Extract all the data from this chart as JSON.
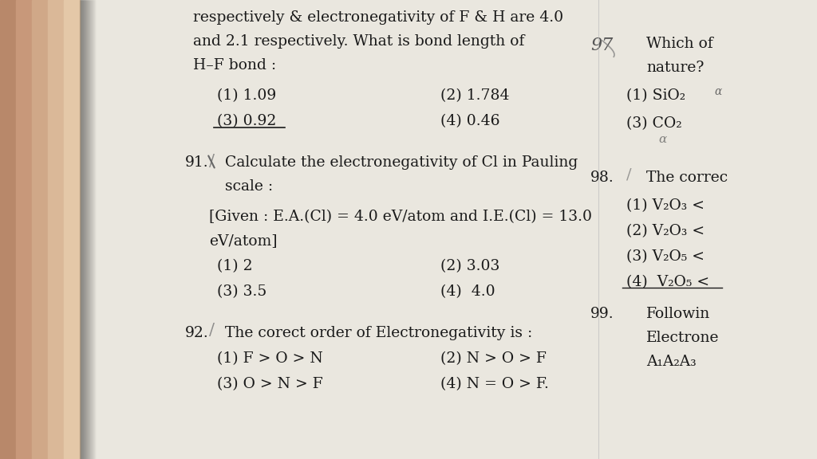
{
  "page_bg": "#d8d4cc",
  "book_page_bg": "#e8e4dc",
  "spine_color": "#c8a882",
  "text_color": "#1a1a1a",
  "font_family": "DejaVu Serif",
  "top_text_lines": [
    "respectively & electronegativity of F & H are 4.0",
    "and 2.1 respectively. What is bond length of",
    "H–F bond :"
  ],
  "q90_opts_row1": [
    "(1) 1.09",
    "(2) 1.784"
  ],
  "q90_opts_row2": [
    "(3) 0.92",
    "(4) 0.46"
  ],
  "q91_number": "91.",
  "q91_lines": [
    "Calculate the electronegativity of Cl in Pauling",
    "scale :"
  ],
  "q91_given1": "[Given : E.A.(Cl) = 4.0 eV/atom and I.E.(Cl) = 13.0",
  "q91_given2": "eV/atom]",
  "q91_opts_row1": [
    "(1) 2",
    "(2) 3.03"
  ],
  "q91_opts_row2": [
    "(3) 3.5",
    "(4)  4.0"
  ],
  "q92_number": "92.",
  "q92_text": "The corect order of Electronegativity is :",
  "q92_opts_row1": [
    "(1) F > O > N",
    "(2) N > O > F"
  ],
  "q92_opts_row2": [
    "(3) O > N > F",
    "(4) N = O > F."
  ],
  "r_q97_num": "97.",
  "r_q97_t1": "Which of",
  "r_q97_t2": "nature?",
  "r_q97_o1": "(1) SiO₂",
  "r_q97_o3": "(3) CO₂",
  "r_q98_num": "98.",
  "r_q98_t": "The correc",
  "r_q98_o1": "(1) V₂O₃ <",
  "r_q98_o2": "(2) V₂O₃ <",
  "r_q98_o3": "(3) V₂O₅ <",
  "r_q98_o4": "(4)  V₂O₅ <",
  "r_q99_num": "99.",
  "r_q99_t1": "Followin",
  "r_q99_t2": "Electrone",
  "r_q99_t3": "A₁A₂A₃",
  "fs": 13.5,
  "fs_small": 11.0
}
